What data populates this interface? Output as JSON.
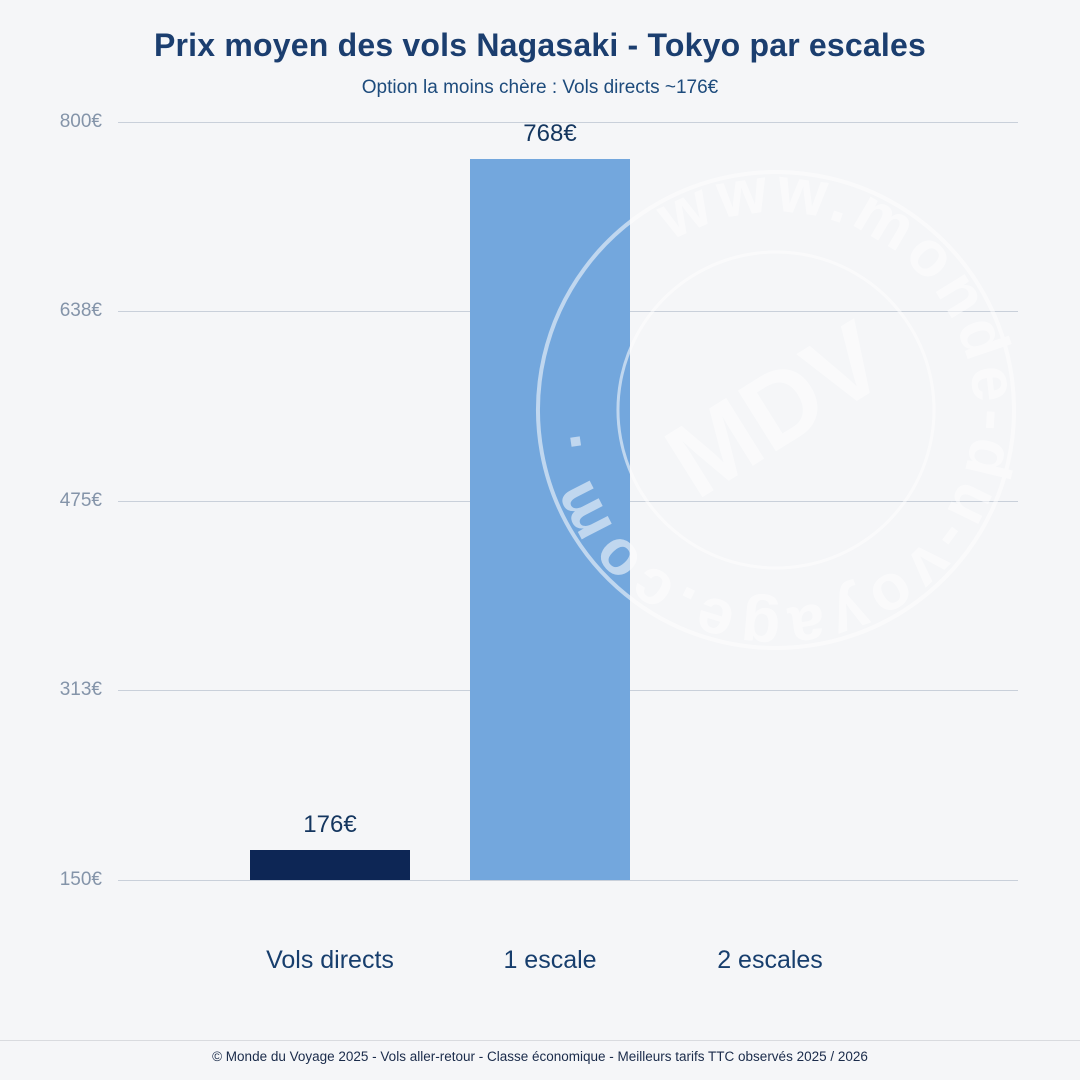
{
  "chart_data": {
    "type": "bar",
    "title": "Prix moyen des vols Nagasaki - Tokyo par escales",
    "subtitle": "Option la moins chère : Vols directs ~176€",
    "categories": [
      "Vols directs",
      "1 escale",
      "2 escales"
    ],
    "values": [
      176,
      768,
      null
    ],
    "value_labels": [
      "176€",
      "768€",
      ""
    ],
    "bar_colors": [
      "#0d2655",
      "#73a7dd",
      "#73a7dd"
    ],
    "yticks": [
      150,
      313,
      475,
      638,
      800
    ],
    "ytick_labels": [
      "150€",
      "313€",
      "475€",
      "638€",
      "800€"
    ],
    "ylim": [
      150,
      800
    ],
    "xlabel": "",
    "ylabel": "",
    "grid": true,
    "legend": false
  },
  "watermark": {
    "ring_text": "www.monde-du-voyage.com .",
    "center_text": "MDV"
  },
  "footer": {
    "text": "© Monde du Voyage 2025 - Vols aller-retour - Classe économique - Meilleurs tarifs TTC observés 2025 / 2026"
  }
}
